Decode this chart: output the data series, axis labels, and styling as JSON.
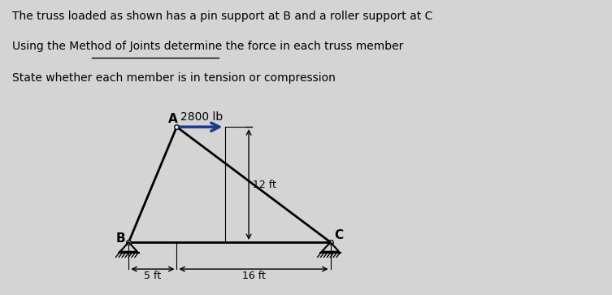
{
  "title_lines": [
    "The truss loaded as shown has a pin support at B and a roller support at C",
    "Using the Method of Joints determine the force in each truss member",
    "State whether each member is in tension or compression"
  ],
  "background_color": "#d4d4d4",
  "text_color": "#000000",
  "nodes": {
    "A": [
      5,
      12
    ],
    "B": [
      0,
      0
    ],
    "C": [
      21,
      0
    ]
  },
  "members": [
    [
      "A",
      "B"
    ],
    [
      "A",
      "C"
    ],
    [
      "B",
      "C"
    ]
  ],
  "load_label": "2800 lb",
  "dim_5ft_label": "5 ft",
  "dim_16ft_label": "16 ft",
  "dim_12ft_label": "12 ft",
  "node_labels": {
    "A": "A",
    "B": "B",
    "C": "C"
  },
  "line_color": "#000000",
  "arrow_color": "#1a3a8a",
  "dim_line_color": "#000000",
  "member_linewidth": 2.0,
  "fig_width": 7.53,
  "fig_height": 3.63,
  "dpi": 100
}
